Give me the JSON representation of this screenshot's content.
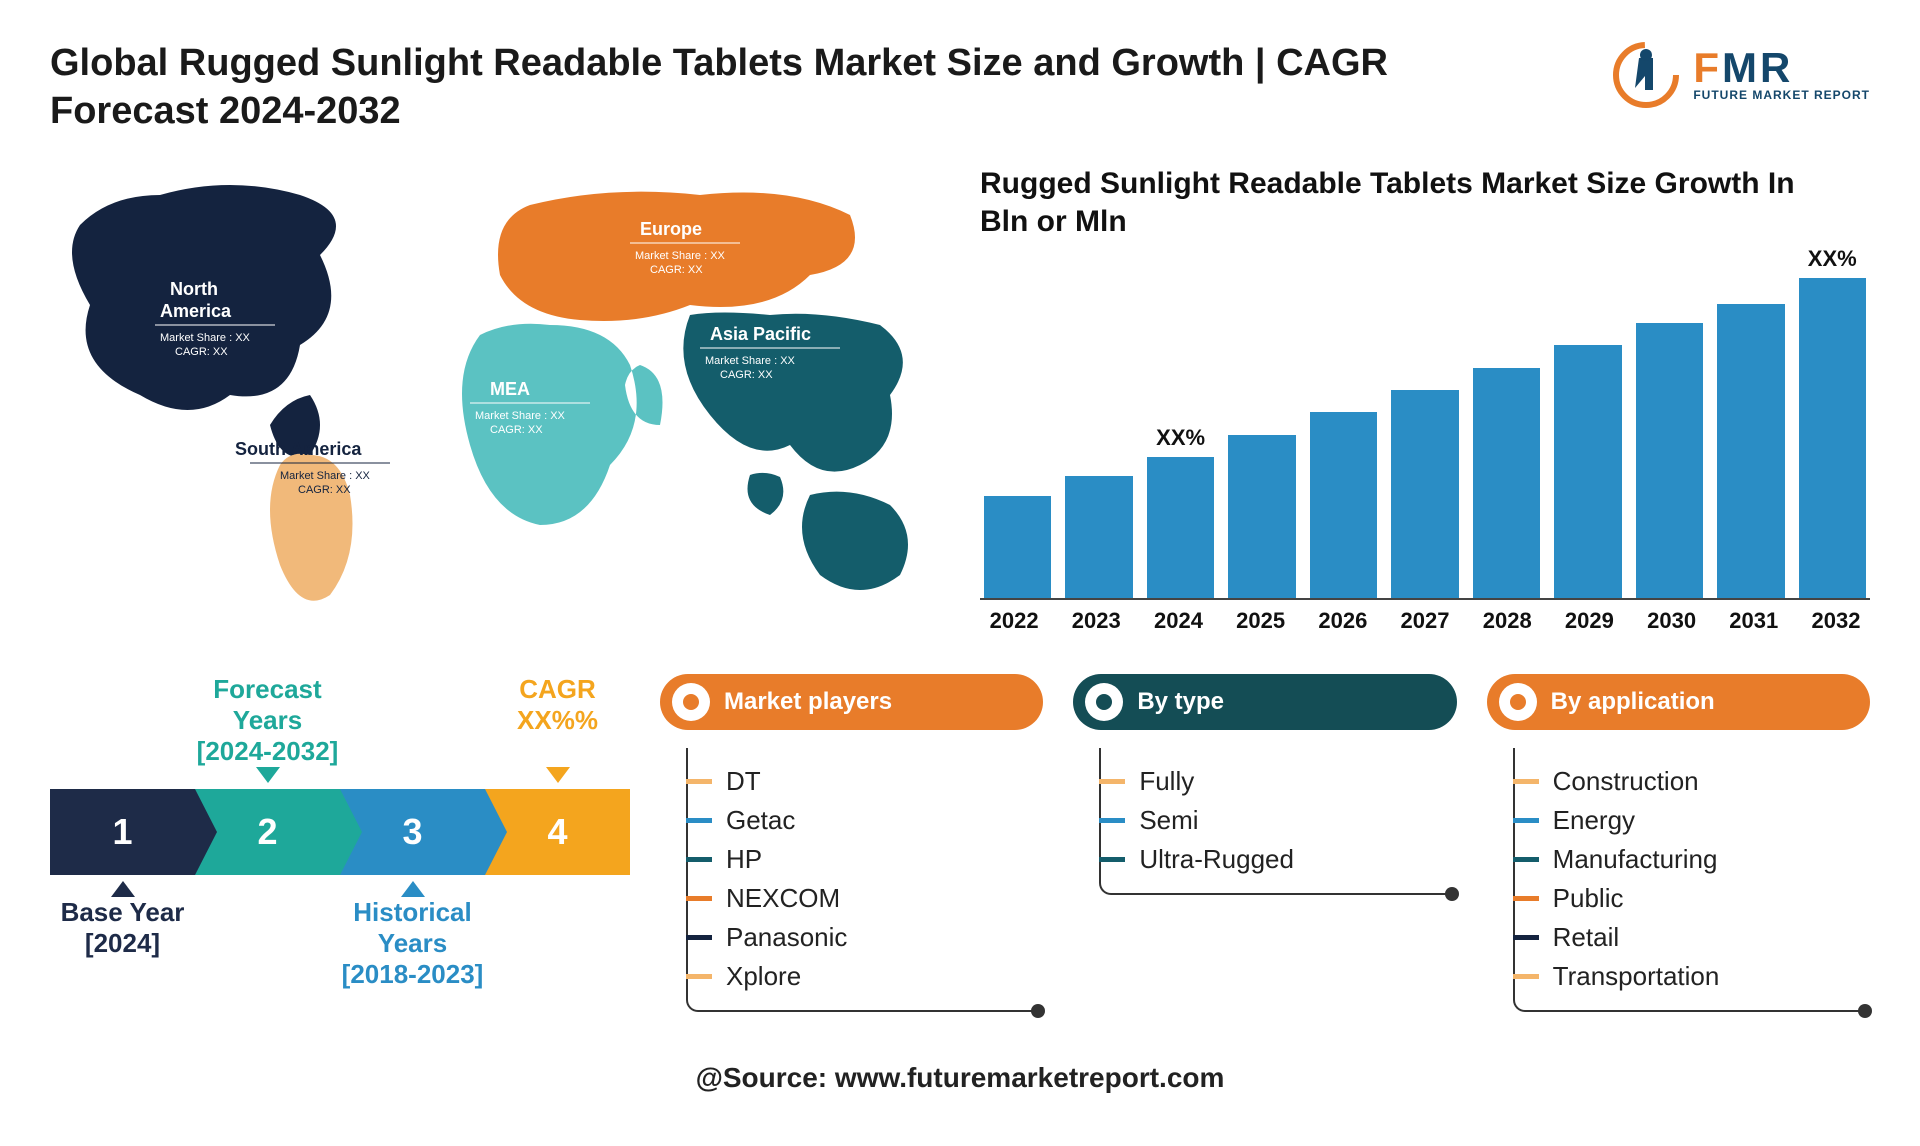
{
  "title": "Global Rugged Sunlight Readable Tablets Market Size and Growth | CAGR Forecast 2024-2032",
  "logo": {
    "fmr_f": "F",
    "fmr_mr": "MR",
    "sub": "FUTURE MARKET REPORT"
  },
  "map": {
    "regions": [
      {
        "key": "na",
        "name": "North America",
        "share": "Market Share : XX",
        "cagr": "CAGR: XX",
        "fill": "#14233f",
        "text_fill": "#ffffff"
      },
      {
        "key": "sa",
        "name": "South America",
        "share": "Market Share : XX",
        "cagr": "CAGR: XX",
        "fill": "#f1b97a",
        "text_fill": "#14233f"
      },
      {
        "key": "eu",
        "name": "Europe",
        "share": "Market Share : XX",
        "cagr": "CAGR: XX",
        "fill": "#e87c2a",
        "text_fill": "#ffffff"
      },
      {
        "key": "mea",
        "name": "MEA",
        "share": "Market Share : XX",
        "cagr": "CAGR: XX",
        "fill": "#5bc2c2",
        "text_fill": "#ffffff"
      },
      {
        "key": "ap",
        "name": "Asia Pacific",
        "share": "Market Share : XX",
        "cagr": "CAGR: XX",
        "fill": "#145d6b",
        "text_fill": "#ffffff"
      }
    ]
  },
  "barchart": {
    "title": "Rugged Sunlight Readable Tablets Market Size Growth In\nBln or Mln",
    "type": "bar",
    "categories": [
      "2022",
      "2023",
      "2024",
      "2025",
      "2026",
      "2027",
      "2028",
      "2029",
      "2030",
      "2031",
      "2032"
    ],
    "values": [
      32,
      38,
      44,
      51,
      58,
      65,
      72,
      79,
      86,
      92,
      100
    ],
    "value_unit": "relative_percent_of_max",
    "bar_color": "#2a8dc5",
    "last_bar_color_shift": "#1f6e99",
    "labels_top": {
      "2": "XX%",
      "10": "XX%"
    },
    "axis_color": "#444444",
    "xlabel_fontsize": 22,
    "xlabel_weight": 700,
    "title_fontsize": 30
  },
  "timeline": {
    "top_labels": {
      "forecast": "Forecast Years",
      "forecast_range": "[2024-2032]",
      "cagr": "CAGR",
      "cagr_val": "XX%%"
    },
    "segments": [
      {
        "num": "1",
        "bg": "#1e2b48"
      },
      {
        "num": "2",
        "bg": "#1ea89a"
      },
      {
        "num": "3",
        "bg": "#2a8dc5"
      },
      {
        "num": "4",
        "bg": "#f4a51e"
      }
    ],
    "bottom_labels": {
      "base": "Base Year",
      "base_range": "[2024]",
      "hist": "Historical Years",
      "hist_range": "[2018-2023]"
    },
    "colors": {
      "forecast": "#1ea89a",
      "cagr": "#f4a51e",
      "base": "#1e2b48",
      "hist": "#2a8dc5"
    }
  },
  "categories": [
    {
      "pill": "Market players",
      "pill_color": "orange",
      "items": [
        {
          "label": "DT",
          "tick": "#f4b56a"
        },
        {
          "label": "Getac",
          "tick": "#2a8dc5"
        },
        {
          "label": "HP",
          "tick": "#145d6b"
        },
        {
          "label": "NEXCOM",
          "tick": "#e87c2a"
        },
        {
          "label": "Panasonic",
          "tick": "#14233f"
        },
        {
          "label": "Xplore",
          "tick": "#f4b56a"
        }
      ]
    },
    {
      "pill": "By type",
      "pill_color": "teal",
      "items": [
        {
          "label": "Fully",
          "tick": "#f4b56a"
        },
        {
          "label": "Semi",
          "tick": "#2a8dc5"
        },
        {
          "label": "Ultra-Rugged",
          "tick": "#145d6b"
        }
      ]
    },
    {
      "pill": "By application",
      "pill_color": "orange",
      "items": [
        {
          "label": "Construction",
          "tick": "#f4b56a"
        },
        {
          "label": "Energy",
          "tick": "#2a8dc5"
        },
        {
          "label": "Manufacturing",
          "tick": "#145d6b"
        },
        {
          "label": "Public",
          "tick": "#e87c2a"
        },
        {
          "label": "Retail",
          "tick": "#14233f"
        },
        {
          "label": "Transportation",
          "tick": "#f4b56a"
        }
      ]
    }
  ],
  "source": "@Source: www.futuremarketreport.com"
}
